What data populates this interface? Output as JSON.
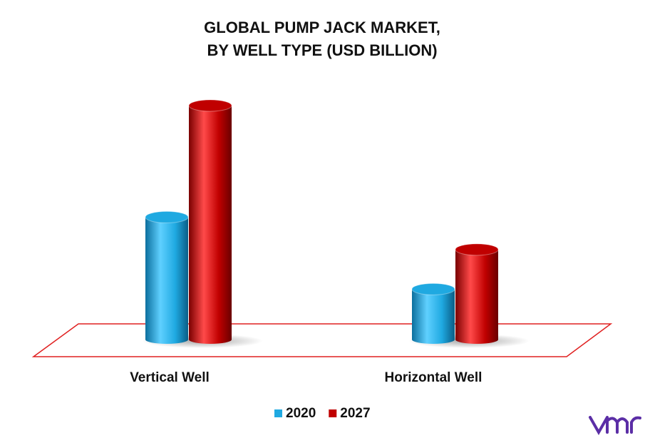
{
  "chart_data": {
    "type": "bar",
    "title": [
      "GLOBAL PUMP JACK MARKET,",
      "BY WELL TYPE (USD BILLION)"
    ],
    "categories": [
      "Vertical Well",
      "Horizontal Well"
    ],
    "series": [
      {
        "name": "2020",
        "color": "#1fa9e1",
        "values": [
          1.7,
          0.7
        ]
      },
      {
        "name": "2027",
        "color": "#c00000",
        "values": [
          3.25,
          1.25
        ]
      }
    ],
    "legend": "bottom"
  }
}
